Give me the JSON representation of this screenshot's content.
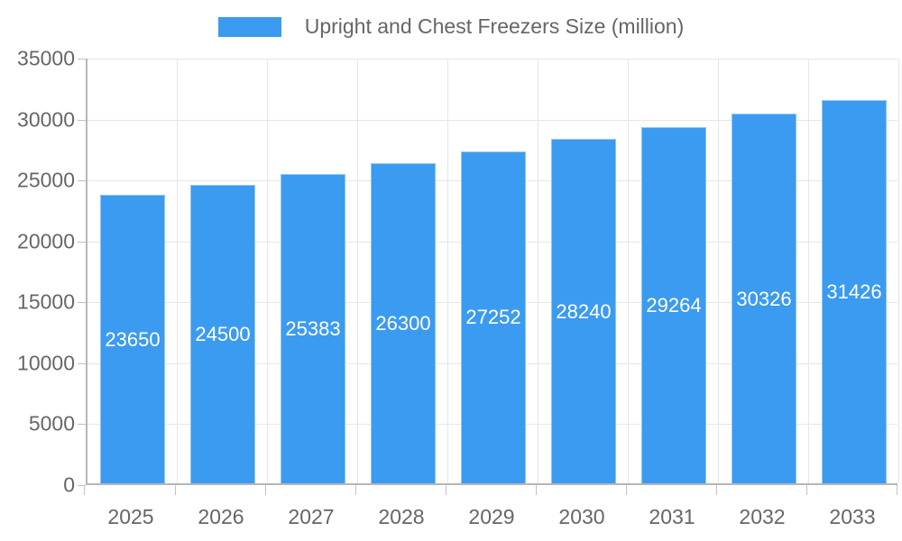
{
  "legend": {
    "label": "Upright and Chest Freezers Size (million)"
  },
  "colors": {
    "bar_fill": "#3B9BF0",
    "bar_border": "#8fc6f5",
    "axis_text": "#666666",
    "grid_line": "#e6e6e6",
    "axis_line": "#b6b6b6",
    "value_text": "#ffffff",
    "background": "#ffffff"
  },
  "chart_data": {
    "type": "bar",
    "title": "Upright and Chest Freezers Size (million)",
    "categories": [
      "2025",
      "2026",
      "2027",
      "2028",
      "2029",
      "2030",
      "2031",
      "2032",
      "2033"
    ],
    "values": [
      23650,
      24500,
      25383,
      26300,
      27252,
      28240,
      29264,
      30326,
      31426
    ],
    "xlabel": "",
    "ylabel": "",
    "ylim": [
      0,
      35000
    ],
    "ytick_step": 5000,
    "yticks": [
      0,
      5000,
      10000,
      15000,
      20000,
      25000,
      30000,
      35000
    ],
    "grid": true,
    "legend_position": "top-center",
    "value_label_position": "inside-center"
  }
}
